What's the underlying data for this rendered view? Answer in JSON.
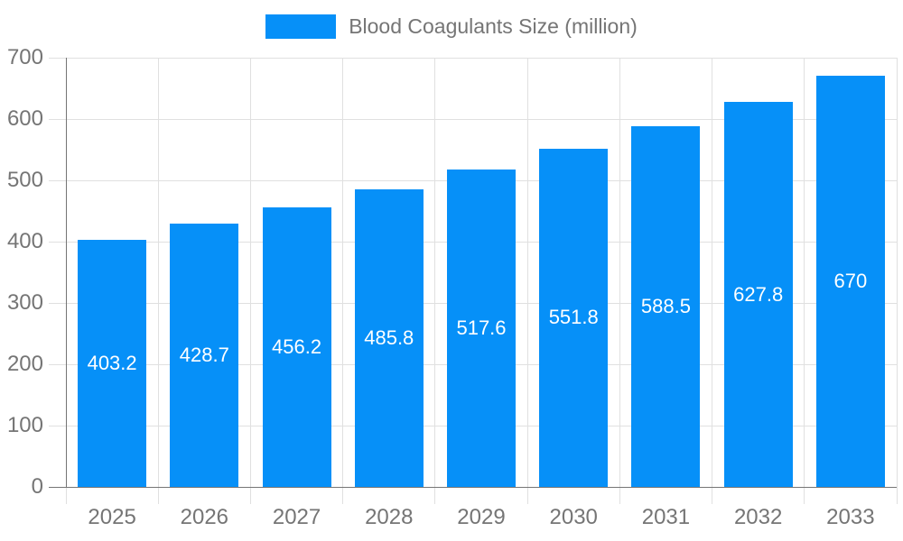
{
  "page": {
    "background": "#ffffff"
  },
  "legend": {
    "label": "Blood Coagulants Size (million)",
    "swatch_color": "#0690F8"
  },
  "chart_data": {
    "type": "bar",
    "title": "Blood Coagulants Size (million)",
    "series_name": "Blood Coagulants Size (million)",
    "categories": [
      "2025",
      "2026",
      "2027",
      "2028",
      "2029",
      "2030",
      "2031",
      "2032",
      "2033"
    ],
    "values": [
      403.2,
      428.7,
      456.2,
      485.8,
      517.6,
      551.8,
      588.5,
      627.8,
      670
    ],
    "value_labels": [
      "403.2",
      "428.7",
      "456.2",
      "485.8",
      "517.6",
      "551.8",
      "588.5",
      "627.8",
      "670"
    ],
    "xlabel": "",
    "ylabel": "",
    "ylim": [
      0,
      700
    ],
    "yticks": [
      0,
      100,
      200,
      300,
      400,
      500,
      600,
      700
    ],
    "grid": true,
    "legend_position": "top",
    "bar_color": "#0690F8",
    "bar_label_color": "#ffffff",
    "axis_text_color": "#757575",
    "axis_line_color": "#757575",
    "grid_color": "#e0e0e0"
  }
}
